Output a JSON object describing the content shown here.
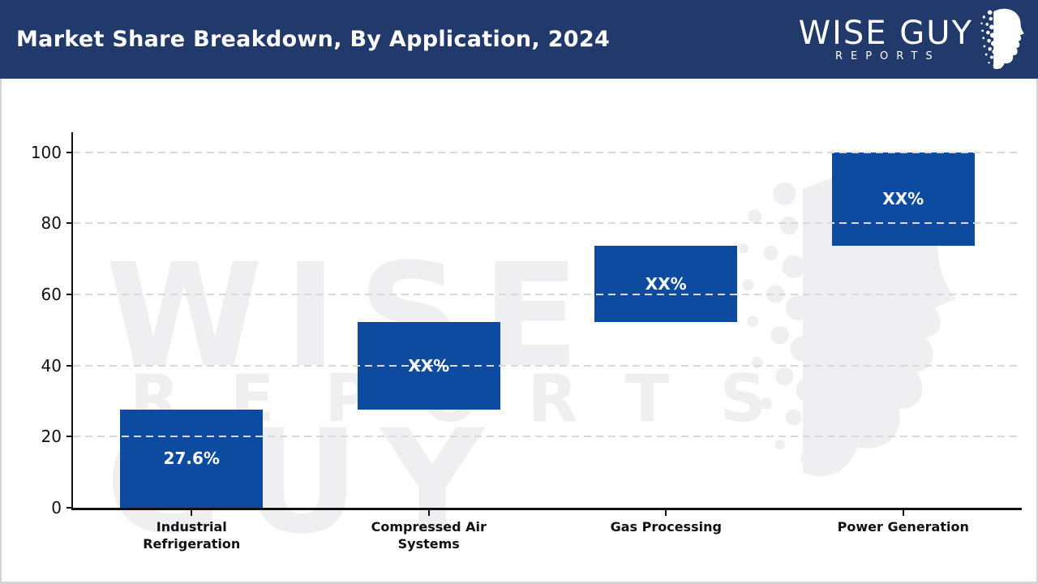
{
  "header": {
    "title": "Market Share Breakdown, By Application, 2024",
    "logo": {
      "wordmark": "WISE GUY",
      "subtitle": "REPORTS",
      "face_icon": "dotted-face-profile"
    }
  },
  "watermark": {
    "wordmark": "WISE GUY",
    "subtitle": "REPORTS",
    "face_icon": "dotted-face-profile"
  },
  "colors": {
    "header_bg": "#21396B",
    "header_text": "#FFFFFF",
    "bar": "#0C4BA0",
    "bar_label_text": "#FFFFFF",
    "axis": "#111111",
    "gridline": "#D9D9D9",
    "watermark": "#EFEFF2",
    "frame_border": "#D4D4D4"
  },
  "chart_data": {
    "type": "bar",
    "subtype": "waterfall",
    "title": "Market Share Breakdown, By Application, 2024",
    "categories": [
      "Industrial\nRefrigeration",
      "Compressed Air\nSystems",
      "Gas Processing",
      "Power Generation"
    ],
    "segments": [
      {
        "category": "Industrial Refrigeration",
        "start": 0,
        "end": 27.6,
        "label": "27.6%"
      },
      {
        "category": "Compressed Air Systems",
        "start": 27.6,
        "end": 52.2,
        "label": "XX%"
      },
      {
        "category": "Gas Processing",
        "start": 52.2,
        "end": 73.7,
        "label": "XX%"
      },
      {
        "category": "Power Generation",
        "start": 73.7,
        "end": 100,
        "label": "XX%"
      }
    ],
    "yticks": [
      0,
      20,
      40,
      60,
      80,
      100
    ],
    "ylim": [
      0,
      105.6
    ],
    "xlabel": "",
    "ylabel": "",
    "grid": "horizontal-dashed",
    "legend": "none"
  }
}
